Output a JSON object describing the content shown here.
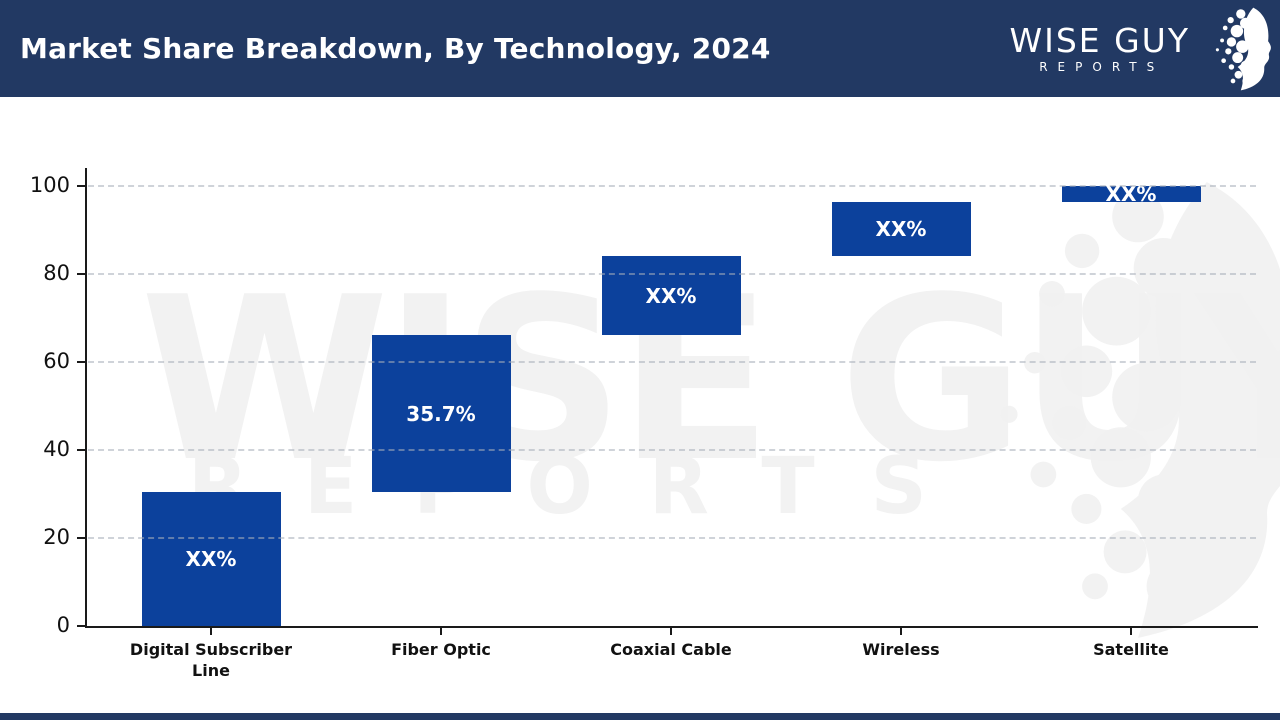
{
  "header": {
    "title": "Market Share Breakdown, By Technology, 2024"
  },
  "logo": {
    "wordmark": "WISE GUY",
    "reports": "REPORTS"
  },
  "watermark": {
    "line1": "WISE GUY",
    "line2": "REPORTS"
  },
  "colors": {
    "header_bg": "#223963",
    "bar": "#0c419c",
    "axis": "#1a1a1a",
    "watermark_text": "#f2f2f2"
  },
  "chart_data": {
    "type": "bar",
    "subtype": "waterfall",
    "title": "Market Share Breakdown, By Technology, 2024",
    "xlabel": "",
    "ylabel": "",
    "categories": [
      "Digital Subscriber Line",
      "Fiber Optic",
      "Coaxial Cable",
      "Wireless",
      "Satellite"
    ],
    "segments": [
      {
        "category": "Digital Subscriber Line",
        "start": 0,
        "end": 30.4,
        "label": "XX%"
      },
      {
        "category": "Fiber Optic",
        "start": 30.4,
        "end": 66.1,
        "label": "35.7%"
      },
      {
        "category": "Coaxial Cable",
        "start": 66.1,
        "end": 84.0,
        "label": "XX%"
      },
      {
        "category": "Wireless",
        "start": 84.0,
        "end": 96.4,
        "label": "XX%"
      },
      {
        "category": "Satellite",
        "start": 96.4,
        "end": 100,
        "label": "XX%"
      }
    ],
    "yticks": [
      0,
      20,
      40,
      60,
      80,
      100
    ],
    "ytick_labels": [
      "0",
      "20",
      "40",
      "60",
      "80",
      "100"
    ],
    "ylim": [
      0,
      104
    ],
    "grid": "dashed horizontal",
    "legend": "none",
    "bar_color": "#0c419c"
  }
}
